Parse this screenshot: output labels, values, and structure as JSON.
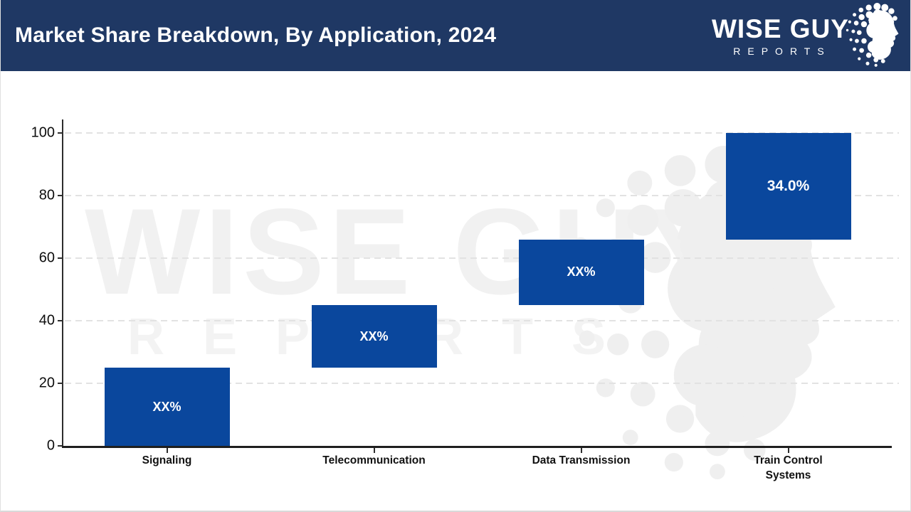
{
  "header": {
    "title": "Market Share Breakdown, By Application, 2024",
    "logo": {
      "line1": "WISE GUY",
      "line2": "REPORTS"
    },
    "bg_color": "#1f3864"
  },
  "watermark": {
    "line1": "WISE GUY",
    "line2": "REPORTS"
  },
  "chart_data": {
    "type": "bar",
    "subtype": "stacked-waterfall",
    "title": "Market Share Breakdown, By Application, 2024",
    "categories": [
      "Signaling",
      "Telecommunication",
      "Data Transmission",
      "Train Control\nSystems"
    ],
    "series": [
      {
        "name": "Market Share (%)",
        "segments": [
          {
            "category": "Signaling",
            "start": 0,
            "end": 25,
            "label": "XX%",
            "emphasis": false
          },
          {
            "category": "Telecommunication",
            "start": 25,
            "end": 45,
            "label": "XX%",
            "emphasis": false
          },
          {
            "category": "Data Transmission",
            "start": 45,
            "end": 66,
            "label": "XX%",
            "emphasis": false
          },
          {
            "category": "Train Control Systems",
            "start": 66,
            "end": 100,
            "label": "34.0%",
            "emphasis": true
          }
        ]
      }
    ],
    "y_ticks": [
      0,
      20,
      40,
      60,
      80,
      100
    ],
    "ylim": [
      0,
      104
    ],
    "xlabel": "",
    "ylabel": "",
    "grid": "horizontal-dashed",
    "legend": "none",
    "bar_color": "#0a479d",
    "axis_color": "#2d2d2d",
    "grid_color": "#e2e2e2"
  }
}
